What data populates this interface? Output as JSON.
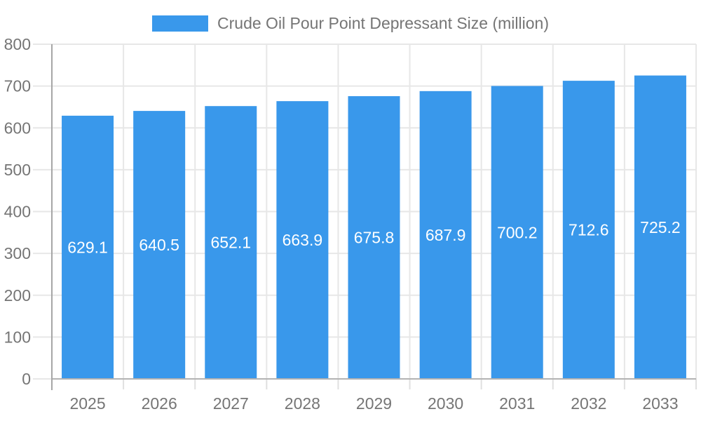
{
  "chart_data": {
    "type": "bar",
    "title": "",
    "series_label": "Crude Oil Pour Point Depressant Size (million)",
    "categories": [
      "2025",
      "2026",
      "2027",
      "2028",
      "2029",
      "2030",
      "2031",
      "2032",
      "2033"
    ],
    "values": [
      629.1,
      640.5,
      652.1,
      663.9,
      675.8,
      687.9,
      700.2,
      712.6,
      725.2
    ],
    "bar_labels": [
      "629.1",
      "640.5",
      "652.1",
      "663.9",
      "675.8",
      "687.9",
      "700.2",
      "712.6",
      "725.2"
    ],
    "xlabel": "",
    "ylabel": "",
    "ylim": [
      0,
      800
    ],
    "yticks": [
      0,
      100,
      200,
      300,
      400,
      500,
      600,
      700,
      800
    ],
    "grid": true,
    "legend_position": "top",
    "bar_labels_visible": true
  },
  "colors": {
    "bar": "#3998EB",
    "bar_label": "#FFFFFF",
    "axis_text": "#757575",
    "gridline": "#E7E7E7",
    "axis_line": "#A6A6A6",
    "baseline": "#B3B3B3",
    "outer_tick": "#E0E0E0",
    "background": "#FFFFFF"
  }
}
